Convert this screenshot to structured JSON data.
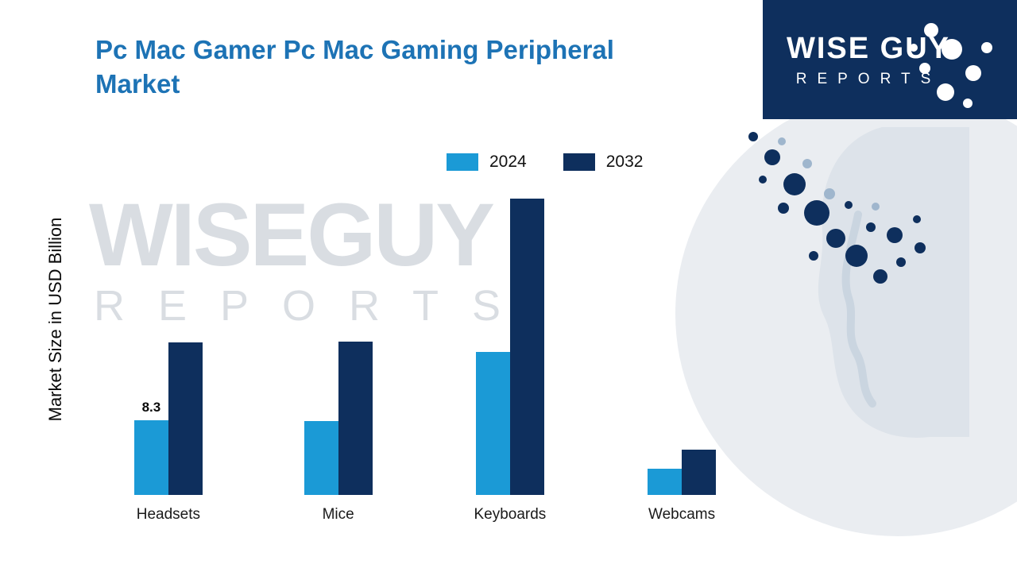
{
  "title": "Pc Mac Gamer Pc Mac Gaming Peripheral Market",
  "logo": {
    "line1": "WISE GUY",
    "line2": "REPORTS"
  },
  "watermark": {
    "line1": "WISEGUY",
    "line2": "REPORTS"
  },
  "ylabel": "Market Size in USD Billion",
  "legend": [
    {
      "label": "2024",
      "color": "#1b9ad6"
    },
    {
      "label": "2032",
      "color": "#0e2f5d"
    }
  ],
  "colors": {
    "series_2024": "#1b9ad6",
    "series_2032": "#0e2f5d",
    "title": "#1d73b5",
    "watermark": "#d9dde2",
    "logo_background": "#0e2f5d"
  },
  "chart_data": {
    "type": "bar",
    "title": "Pc Mac Gamer Pc Mac Gaming Peripheral Market",
    "categories": [
      "Headsets",
      "Mice",
      "Keyboards",
      "Webcams"
    ],
    "series": [
      {
        "name": "2024",
        "color": "#1b9ad6",
        "values": [
          8.3,
          8.2,
          15.8,
          2.9
        ]
      },
      {
        "name": "2032",
        "color": "#0e2f5d",
        "values": [
          16.9,
          17.0,
          32.8,
          5.0
        ]
      }
    ],
    "xlabel": "",
    "ylabel": "Market Size in USD Billion",
    "ylim": [
      0,
      33
    ],
    "grid": false,
    "legend_position": "top",
    "annotations": [
      {
        "series": "2024",
        "category": "Headsets",
        "text": "8.3"
      }
    ]
  }
}
